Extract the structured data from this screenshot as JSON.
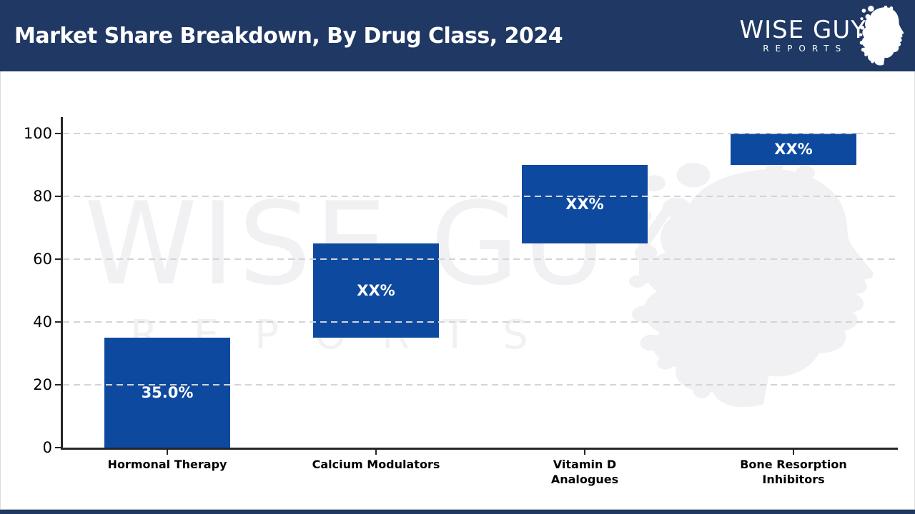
{
  "header": {
    "title": "Market Share Breakdown, By Drug Class, 2024",
    "brand": {
      "line1": "WISE GUY",
      "line2": "REPORTS"
    }
  },
  "watermark": {
    "line1": "WISE GUY",
    "line2": "REPORTS"
  },
  "colors": {
    "header_bg": "#1f3864",
    "footer_bg": "#1f3864",
    "title_text": "#ffffff",
    "bar": "#0d4a9f",
    "bar_label": "#ffffff",
    "grid": "#d4d4d4",
    "axis": "#262626",
    "tick_label": "#000000",
    "watermark": "#f1f1f4"
  },
  "chart_data": {
    "type": "bar",
    "variant": "waterfall",
    "title": "Market Share Breakdown, By Drug Class, 2024",
    "xlabel": "",
    "ylabel": "",
    "categories": [
      "Hormonal Therapy",
      "Calcium Modulators",
      "Vitamin D\nAnalogues",
      "Bone Resorption\nInhibitors"
    ],
    "segments": [
      {
        "category": "Hormonal Therapy",
        "start": 0,
        "end": 35,
        "display": "35.0%"
      },
      {
        "category": "Calcium Modulators",
        "start": 35,
        "end": 65,
        "display": "XX%"
      },
      {
        "category": "Vitamin D Analogues",
        "start": 65,
        "end": 90,
        "display": "XX%"
      },
      {
        "category": "Bone Resorption Inhibitors",
        "start": 90,
        "end": 100,
        "display": "XX%"
      }
    ],
    "yticks": [
      0,
      20,
      40,
      60,
      80,
      100
    ],
    "ylim": [
      0,
      105
    ],
    "grid": "horizontal-dashed",
    "legend": "none"
  }
}
